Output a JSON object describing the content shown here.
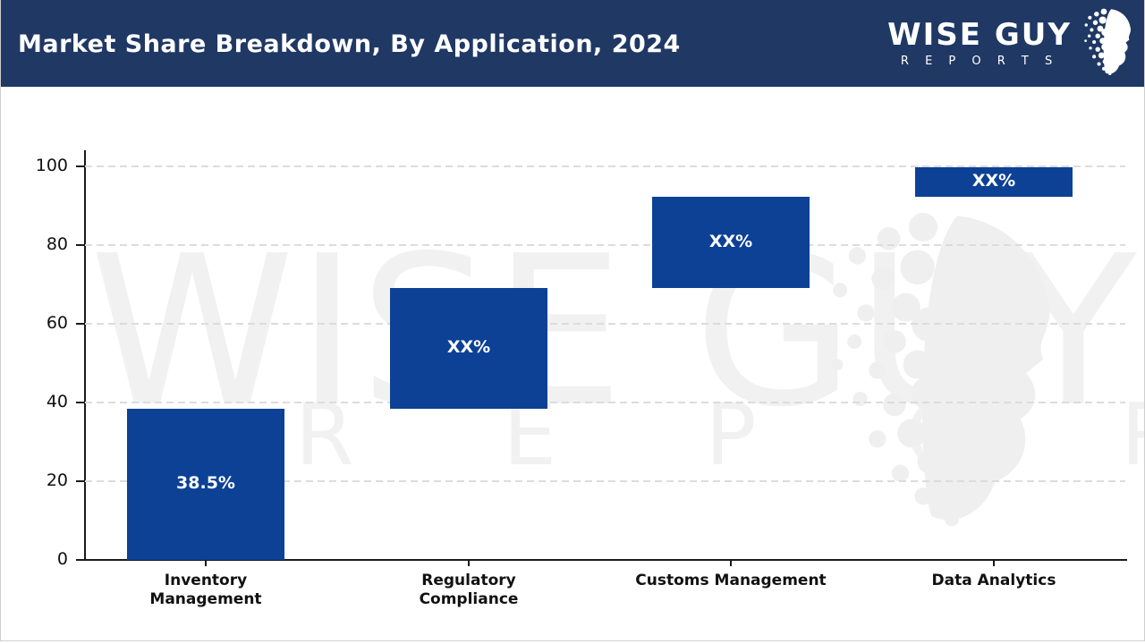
{
  "header": {
    "title": "Market Share Breakdown, By Application, 2024",
    "logo": {
      "line1": "WISE GUY",
      "line2": "R E P O R T S"
    }
  },
  "watermark": {
    "line1": "WISE GUY",
    "line2": "R E P O R T S"
  },
  "chart_data": {
    "type": "bar",
    "subtype": "waterfall",
    "title": "Market Share Breakdown, By Application, 2024",
    "categories": [
      "Inventory\nManagement",
      "Regulatory\nCompliance",
      "Customs Management",
      "Data Analytics"
    ],
    "series": [
      {
        "name": "Market Share",
        "segments": [
          {
            "category": "Inventory Management",
            "start": 0,
            "end": 38.5,
            "label": "38.5%"
          },
          {
            "category": "Regulatory Compliance",
            "start": 38.5,
            "end": 69.2,
            "label": "XX%"
          },
          {
            "category": "Customs Management",
            "start": 69.2,
            "end": 92.3,
            "label": "XX%"
          },
          {
            "category": "Data Analytics",
            "start": 92.3,
            "end": 99.8,
            "label": "XX%"
          }
        ]
      }
    ],
    "xlabel": "",
    "ylabel": "",
    "ylim": [
      0,
      103
    ],
    "yticks": [
      0,
      20,
      40,
      60,
      80,
      100
    ],
    "grid": "horizontal-dashed",
    "legend": "none",
    "bar_color": "#0c4196",
    "bar_label_color": "#ffffff"
  },
  "colors": {
    "header_bg": "#1f3864",
    "bar": "#0c4196",
    "grid": "#dcdcdc",
    "axis": "#1a1a1a",
    "watermark": "#f1f1f1",
    "border": "#cfcfcf"
  }
}
